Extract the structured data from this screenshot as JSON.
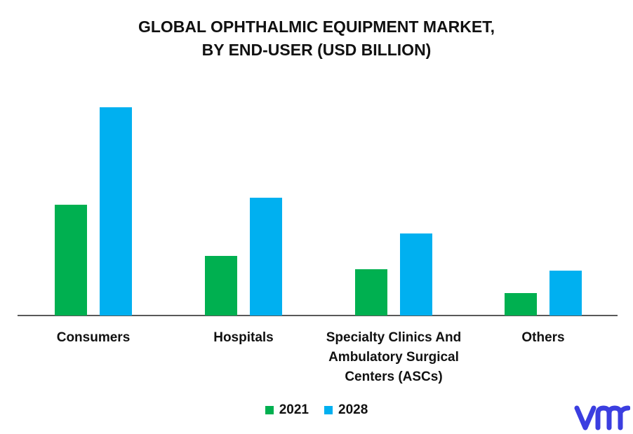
{
  "chart_data": {
    "type": "bar",
    "title": "GLOBAL OPHTHALMIC EQUIPMENT MARKET,",
    "subtitle": "BY END-USER (USD BILLION)",
    "categories": [
      [
        "Consumers"
      ],
      [
        "Hospitals"
      ],
      [
        "Specialty Clinics And",
        "Ambulatory Surgical",
        "Centers (ASCs)"
      ],
      [
        "Others"
      ]
    ],
    "series": [
      {
        "name": "2021",
        "color": "#00b050",
        "values": [
          15.8,
          8.5,
          6.6,
          3.2
        ]
      },
      {
        "name": "2028",
        "color": "#00b0f0",
        "values": [
          29.7,
          16.8,
          11.7,
          6.4
        ]
      }
    ],
    "ylim": [
      0,
      30
    ],
    "grid": false,
    "legend_position": "bottom-center"
  },
  "brand": {
    "logo_icon": "vmr-logo-icon",
    "logo_color": "#3b3ee0"
  }
}
